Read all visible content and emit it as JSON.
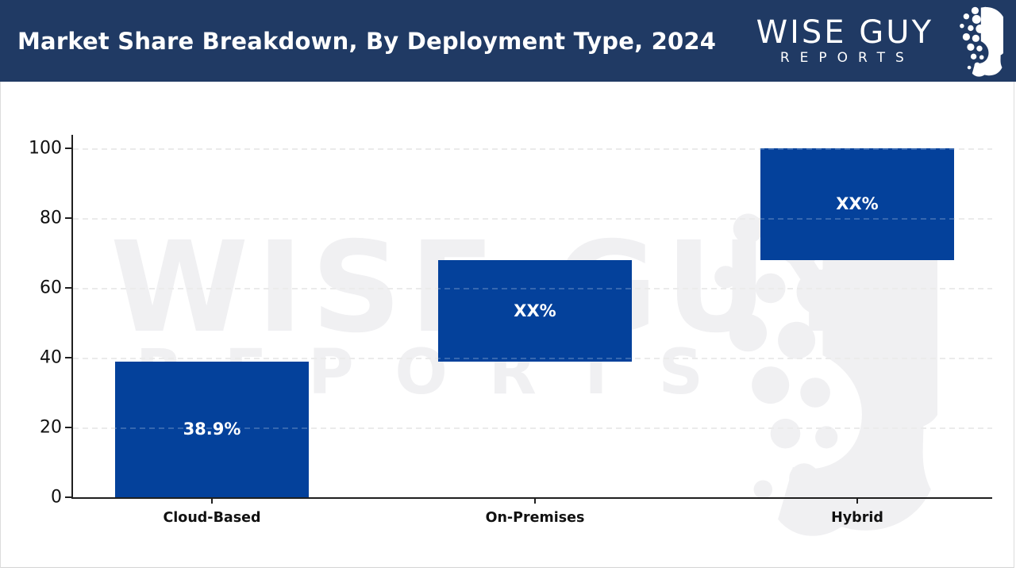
{
  "header": {
    "title": "Market Share Breakdown, By Deployment Type, 2024",
    "logo": {
      "name": "wise-guy-reports",
      "line1": "WISE GUY",
      "line2": "REPORTS"
    }
  },
  "watermark": {
    "line1": "WISE GUY",
    "line2": "REPORTS"
  },
  "chart_data": {
    "type": "bar",
    "variant": "floating-stacked-waterfall",
    "title": "Market Share Breakdown, By Deployment Type, 2024",
    "categories": [
      "Cloud-Based",
      "On-Premises",
      "Hybrid"
    ],
    "bars": [
      {
        "category": "Cloud-Based",
        "start": 0,
        "end": 38.9,
        "label": "38.9%"
      },
      {
        "category": "On-Premises",
        "start": 38.9,
        "end": 68,
        "label": "XX%"
      },
      {
        "category": "Hybrid",
        "start": 68,
        "end": 100,
        "label": "XX%"
      }
    ],
    "xlabel": "",
    "ylabel": "",
    "ylim": [
      0,
      100
    ],
    "yticks": [
      0,
      20,
      40,
      60,
      80,
      100
    ],
    "grid": "horizontal-dashed",
    "legend": null,
    "bar_color": "#04419b",
    "bar_label_color": "#ffffff"
  },
  "colors": {
    "header_bg": "#203a64",
    "axis": "#1f1f1f",
    "gridline": "#e6e6e6",
    "frame": "#dcdcdc",
    "watermark": "#f0f0f2",
    "tick_text": "#111111"
  }
}
